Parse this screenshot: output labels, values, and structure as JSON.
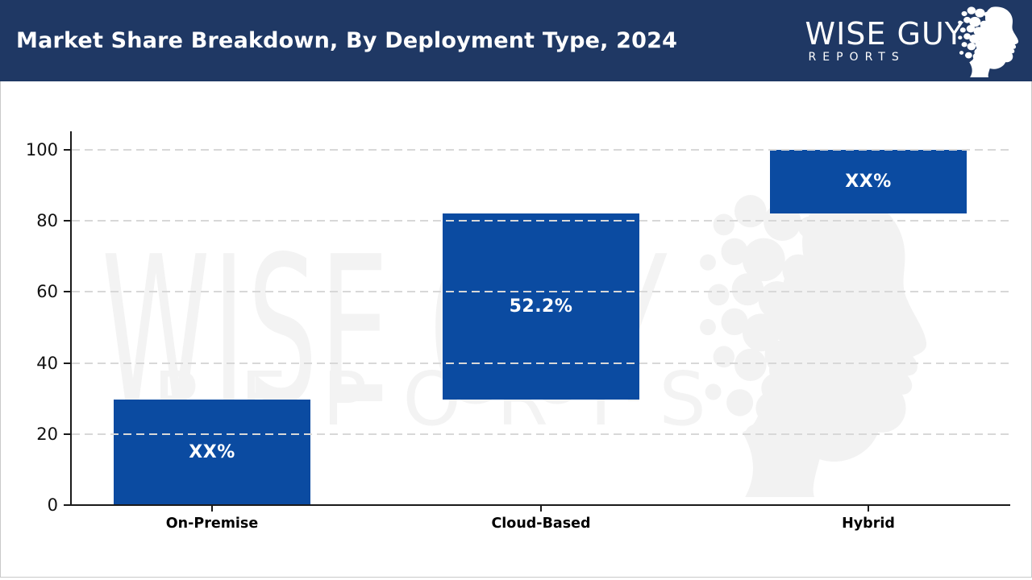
{
  "header": {
    "title": "Market Share Breakdown, By Deployment Type, 2024",
    "bg_color": "#1f3864",
    "logo": {
      "line1": "WISE GUY",
      "line2": "REPORTS"
    }
  },
  "watermark": {
    "line1": "WISE GUY",
    "line2": "REPORTS"
  },
  "chart_data": {
    "type": "bar",
    "subtype": "waterfall-style floating percentage bars",
    "title": "Market Share Breakdown, By Deployment Type, 2024",
    "categories": [
      "On-Premise",
      "Cloud-Based",
      "Hybrid"
    ],
    "segments": [
      {
        "category": "On-Premise",
        "start": 0,
        "end": 29.8,
        "label": "XX%"
      },
      {
        "category": "Cloud-Based",
        "start": 29.8,
        "end": 82.0,
        "label": "52.2%"
      },
      {
        "category": "Hybrid",
        "start": 82.0,
        "end": 100,
        "label": "XX%"
      }
    ],
    "xlabel": "",
    "ylabel": "",
    "ylim": [
      0,
      100
    ],
    "yticks": [
      0,
      20,
      40,
      60,
      80,
      100
    ],
    "grid": "horizontal dashed, drawn over bars",
    "legend": "none",
    "bar_color": "#0b4ba1",
    "gridline_color": "#d8d8d8",
    "axis_color": "#1a1a1a",
    "watermark_color": "#f3f3f3"
  }
}
